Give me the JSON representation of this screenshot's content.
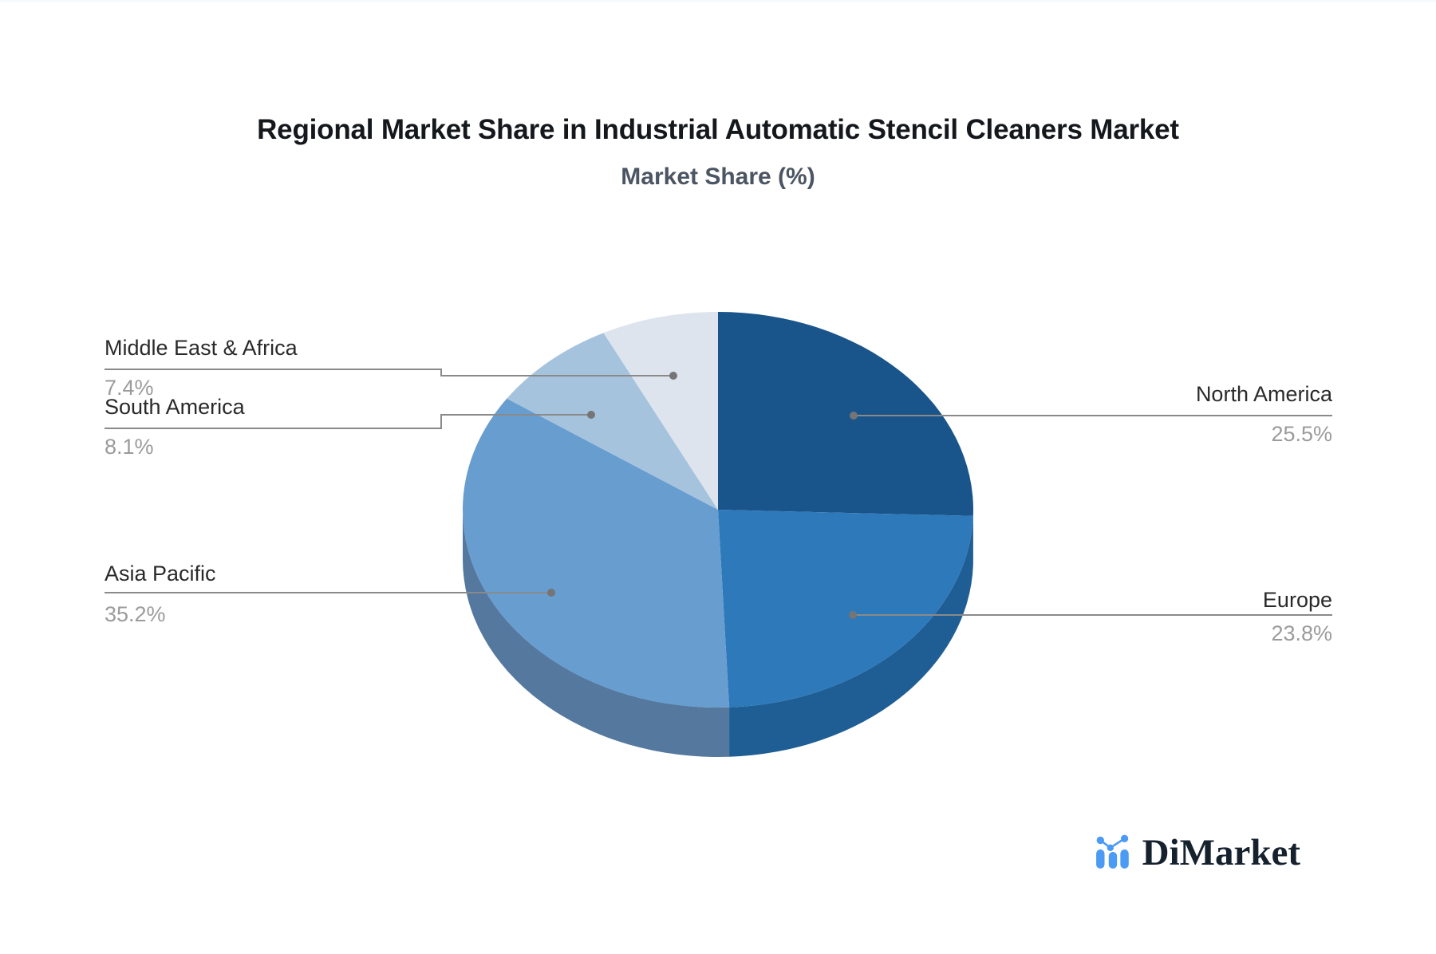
{
  "page": {
    "background": "#FFFFFF"
  },
  "chart_data": {
    "type": "pie",
    "style": "3d",
    "title": "Regional Market Share in Industrial Automatic Stencil Cleaners Market",
    "subtitle": "Market Share (%)",
    "unit": "%",
    "start_angle": "12-oclock",
    "direction": "clockwise",
    "slices": [
      {
        "label": "North America",
        "value": 25.5,
        "display": "25.5%",
        "color": "#19548B",
        "wall_color": "#133F68"
      },
      {
        "label": "Europe",
        "value": 23.8,
        "display": "23.8%",
        "color": "#2E79BA",
        "wall_color": "#1F5E94"
      },
      {
        "label": "Asia Pacific",
        "value": 35.2,
        "display": "35.2%",
        "color": "#689DD0",
        "wall_color": "#54789E"
      },
      {
        "label": "South America",
        "value": 8.1,
        "display": "8.1%",
        "color": "#A6C3DE",
        "wall_color": "#82A0BC"
      },
      {
        "label": "Middle East & Africa",
        "value": 7.4,
        "display": "7.4%",
        "color": "#DDE4EE",
        "wall_color": "#B6C2D2"
      }
    ],
    "leader_line_color": "#8A8A8A",
    "dot_color": "#757575",
    "legend_position": "callout-labels",
    "grid": false
  },
  "logo": {
    "text": "DiMarket",
    "icon": "bar-line-chart-icon",
    "icon_color": "#4B9BF4",
    "text_color": "#16212E"
  }
}
